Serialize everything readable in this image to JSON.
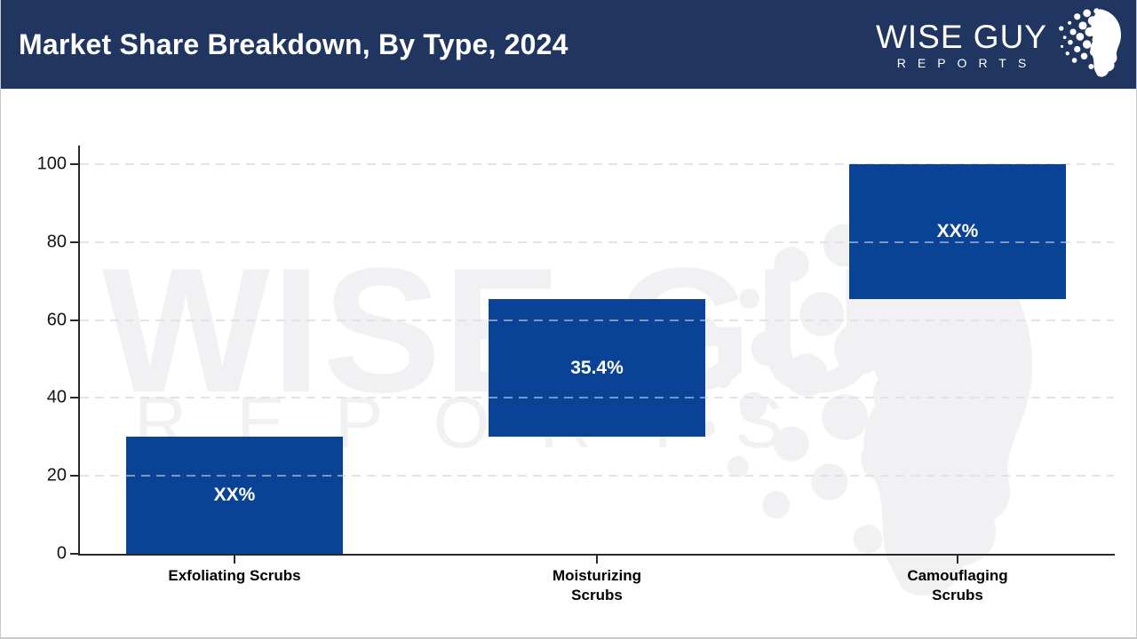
{
  "header": {
    "title": "Market Share Breakdown, By Type, 2024",
    "logo": {
      "line1": "WISE GUY",
      "line2": "REPORTS"
    }
  },
  "watermark": {
    "line1": "WISE GUY",
    "line2": "REPORTS"
  },
  "colors": {
    "header_bg": "#203560",
    "bar_blue": "#0a4296",
    "grid_gray": "#e3e3e7",
    "watermark_gray": "#f1f1f4",
    "axis_black": "#2a2a2a"
  },
  "chart_data": {
    "type": "bar",
    "subtype": "floating-waterfall",
    "title": "Market Share Breakdown, By Type, 2024",
    "categories": [
      "Exfoliating Scrubs",
      "Moisturizing Scrubs",
      "Camouflaging Scrubs"
    ],
    "categories_display": [
      "Exfoliating Scrubs",
      "Moisturizing\nScrubs",
      "Camouflaging\nScrubs"
    ],
    "segments": [
      {
        "category": "Exfoliating Scrubs",
        "start": 0,
        "end": 30,
        "label": "XX%"
      },
      {
        "category": "Moisturizing Scrubs",
        "start": 30,
        "end": 65.4,
        "label": "35.4%"
      },
      {
        "category": "Camouflaging Scrubs",
        "start": 65.4,
        "end": 100,
        "label": "XX%"
      }
    ],
    "xlabel": "",
    "ylabel": "",
    "ylim": [
      0,
      100
    ],
    "yticks": [
      0,
      20,
      40,
      60,
      80,
      100
    ],
    "grid": "horizontal-dashed",
    "legend": "none",
    "bar_color": "#0a4296"
  }
}
